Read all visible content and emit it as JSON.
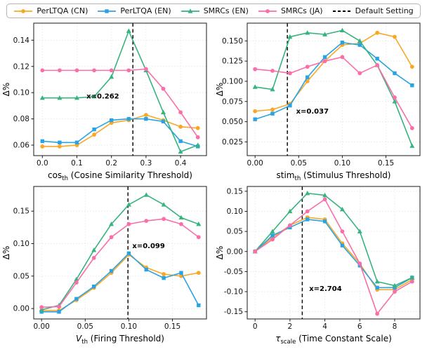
{
  "legend": {
    "items": [
      {
        "label": "PerLTQA (CN)",
        "color": "#F9A825",
        "marker": "circle",
        "line": "solid"
      },
      {
        "label": "PerLTQA (EN)",
        "color": "#29A3E3",
        "marker": "square",
        "line": "solid"
      },
      {
        "label": "SMRCs (EN)",
        "color": "#36B37E",
        "marker": "triangle",
        "line": "solid"
      },
      {
        "label": "SMRCs (JA)",
        "color": "#FA6EA9",
        "marker": "circle",
        "line": "solid"
      },
      {
        "label": "Default Setting",
        "color": "#000000",
        "marker": "none",
        "line": "dashed"
      }
    ]
  },
  "chart_data": [
    {
      "name": "cosine-similarity-threshold",
      "type": "line",
      "ylabel": "Δ%",
      "xlabel": {
        "main": "cos",
        "main_italic": false,
        "sub": "th",
        "desc": " (Cosine Similarity Threshold)"
      },
      "xlim": [
        -0.025,
        0.475
      ],
      "ylim": [
        0.052,
        0.153
      ],
      "x_tick_vals": [
        0.0,
        0.1,
        0.2,
        0.3,
        0.4
      ],
      "x_tick_labels": [
        "0.0",
        "0.1",
        "0.2",
        "0.3",
        "0.4"
      ],
      "y_tick_vals": [
        0.06,
        0.08,
        0.1,
        0.12,
        0.14
      ],
      "y_tick_labels": [
        "0.06",
        "0.08",
        "0.10",
        "0.12",
        "0.14"
      ],
      "default_setting_x": 0.262,
      "annotation": {
        "text": "x=0.262",
        "x": 0.175,
        "y": 0.0955,
        "anchor": "middle"
      },
      "x": [
        0.0,
        0.05,
        0.1,
        0.15,
        0.2,
        0.25,
        0.3,
        0.35,
        0.4,
        0.45
      ],
      "series": [
        {
          "name": "PerLTQA (CN)",
          "color": "#F9A825",
          "marker": "circle",
          "values": [
            0.059,
            0.059,
            0.06,
            0.068,
            0.077,
            0.079,
            0.083,
            0.079,
            0.074,
            0.073
          ]
        },
        {
          "name": "PerLTQA (EN)",
          "color": "#29A3E3",
          "marker": "square",
          "values": [
            0.063,
            0.062,
            0.062,
            0.072,
            0.079,
            0.08,
            0.08,
            0.078,
            0.063,
            0.059
          ]
        },
        {
          "name": "SMRCs (EN)",
          "color": "#36B37E",
          "marker": "triangle",
          "values": [
            0.096,
            0.096,
            0.096,
            0.097,
            0.112,
            0.147,
            0.117,
            0.085,
            0.055,
            0.06
          ]
        },
        {
          "name": "SMRCs (JA)",
          "color": "#FA6EA9",
          "marker": "circle",
          "values": [
            0.117,
            0.117,
            0.117,
            0.117,
            0.117,
            0.117,
            0.118,
            0.103,
            0.085,
            0.066
          ]
        }
      ]
    },
    {
      "name": "stimulus-threshold",
      "type": "line",
      "ylabel": "Δ%",
      "xlabel": {
        "main": "stim",
        "main_italic": false,
        "sub": "th",
        "desc": " (Stimulus Threshold)"
      },
      "xlim": [
        -0.009,
        0.189
      ],
      "ylim": [
        0.008,
        0.172
      ],
      "x_tick_vals": [
        0.0,
        0.05,
        0.1,
        0.15
      ],
      "x_tick_labels": [
        "0.00",
        "0.05",
        "0.10",
        "0.15"
      ],
      "y_tick_vals": [
        0.025,
        0.05,
        0.075,
        0.1,
        0.125,
        0.15
      ],
      "y_tick_labels": [
        "0.025",
        "0.050",
        "0.075",
        "0.100",
        "0.125",
        "0.150"
      ],
      "default_setting_x": 0.037,
      "annotation": {
        "text": "x=0.037",
        "x": 0.047,
        "y": 0.06,
        "anchor": "start"
      },
      "x": [
        0.0,
        0.02,
        0.04,
        0.06,
        0.08,
        0.1,
        0.12,
        0.14,
        0.16,
        0.18
      ],
      "series": [
        {
          "name": "PerLTQA (CN)",
          "color": "#F9A825",
          "marker": "circle",
          "values": [
            0.063,
            0.065,
            0.072,
            0.1,
            0.125,
            0.145,
            0.147,
            0.16,
            0.155,
            0.118
          ]
        },
        {
          "name": "PerLTQA (EN)",
          "color": "#29A3E3",
          "marker": "square",
          "values": [
            0.053,
            0.06,
            0.07,
            0.105,
            0.13,
            0.148,
            0.145,
            0.128,
            0.11,
            0.095
          ]
        },
        {
          "name": "SMRCs (EN)",
          "color": "#36B37E",
          "marker": "triangle",
          "values": [
            0.093,
            0.09,
            0.155,
            0.16,
            0.158,
            0.163,
            0.15,
            0.12,
            0.075,
            0.02
          ]
        },
        {
          "name": "SMRCs (JA)",
          "color": "#FA6EA9",
          "marker": "circle",
          "values": [
            0.115,
            0.113,
            0.11,
            0.118,
            0.125,
            0.13,
            0.11,
            0.12,
            0.08,
            0.042
          ]
        }
      ]
    },
    {
      "name": "firing-threshold",
      "type": "line",
      "ylabel": "Δ%",
      "xlabel": {
        "main": "V",
        "main_italic": true,
        "sub": "th",
        "desc": " (Firing Threshold)"
      },
      "xlim": [
        -0.009,
        0.189
      ],
      "ylim": [
        -0.016,
        0.188
      ],
      "x_tick_vals": [
        0.0,
        0.05,
        0.1,
        0.15
      ],
      "x_tick_labels": [
        "0.00",
        "0.05",
        "0.10",
        "0.15"
      ],
      "y_tick_vals": [
        0.0,
        0.05,
        0.1,
        0.15
      ],
      "y_tick_labels": [
        "0.00",
        "0.05",
        "0.10",
        "0.15"
      ],
      "default_setting_x": 0.099,
      "annotation": {
        "text": "x=0.099",
        "x": 0.104,
        "y": 0.093,
        "anchor": "start"
      },
      "x": [
        0.0,
        0.02,
        0.04,
        0.06,
        0.08,
        0.1,
        0.12,
        0.14,
        0.16,
        0.18
      ],
      "series": [
        {
          "name": "PerLTQA (CN)",
          "color": "#F9A825",
          "marker": "circle",
          "values": [
            -0.003,
            -0.003,
            0.013,
            0.032,
            0.055,
            0.083,
            0.063,
            0.053,
            0.05,
            0.055
          ]
        },
        {
          "name": "PerLTQA (EN)",
          "color": "#29A3E3",
          "marker": "square",
          "values": [
            -0.005,
            -0.005,
            0.015,
            0.034,
            0.058,
            0.085,
            0.06,
            0.047,
            0.055,
            0.005
          ]
        },
        {
          "name": "SMRCs (EN)",
          "color": "#36B37E",
          "marker": "triangle",
          "values": [
            -0.002,
            0.005,
            0.045,
            0.09,
            0.13,
            0.16,
            0.175,
            0.16,
            0.14,
            0.13
          ]
        },
        {
          "name": "SMRCs (JA)",
          "color": "#FA6EA9",
          "marker": "circle",
          "values": [
            0.002,
            0.003,
            0.04,
            0.078,
            0.11,
            0.13,
            0.135,
            0.138,
            0.13,
            0.11
          ]
        }
      ]
    },
    {
      "name": "time-constant-scale",
      "type": "line",
      "ylabel": "Δ%",
      "xlabel": {
        "main": "τ",
        "main_italic": true,
        "sub": "scale",
        "desc": " (Time Constant Scale)"
      },
      "xlim": [
        -0.45,
        9.45
      ],
      "ylim": [
        -0.168,
        0.162
      ],
      "x_tick_vals": [
        0,
        2,
        4,
        6,
        8
      ],
      "x_tick_labels": [
        "0",
        "2",
        "4",
        "6",
        "8"
      ],
      "y_tick_vals": [
        -0.15,
        -0.1,
        -0.05,
        0.0,
        0.05,
        0.1,
        0.15
      ],
      "y_tick_labels": [
        "-0.15",
        "-0.10",
        "-0.05",
        "0.00",
        "0.05",
        "0.10",
        "0.15"
      ],
      "default_setting_x": 2.704,
      "annotation": {
        "text": "x=2.704",
        "x": 3.1,
        "y": -0.098,
        "anchor": "start"
      },
      "x": [
        0,
        1,
        2,
        3,
        4,
        5,
        6,
        7,
        8,
        9
      ],
      "series": [
        {
          "name": "PerLTQA (CN)",
          "color": "#F9A825",
          "marker": "circle",
          "values": [
            0.0,
            0.035,
            0.065,
            0.085,
            0.08,
            0.02,
            -0.03,
            -0.095,
            -0.095,
            -0.07
          ]
        },
        {
          "name": "PerLTQA (EN)",
          "color": "#29A3E3",
          "marker": "square",
          "values": [
            0.0,
            0.04,
            0.06,
            0.08,
            0.075,
            0.015,
            -0.035,
            -0.09,
            -0.09,
            -0.065
          ]
        },
        {
          "name": "SMRCs (EN)",
          "color": "#36B37E",
          "marker": "triangle",
          "values": [
            0.0,
            0.05,
            0.1,
            0.145,
            0.14,
            0.105,
            0.05,
            -0.075,
            -0.085,
            -0.065
          ]
        },
        {
          "name": "SMRCs (JA)",
          "color": "#FA6EA9",
          "marker": "circle",
          "values": [
            0.0,
            0.03,
            0.065,
            0.1,
            0.13,
            0.05,
            -0.03,
            -0.155,
            -0.1,
            -0.075
          ]
        }
      ]
    }
  ]
}
